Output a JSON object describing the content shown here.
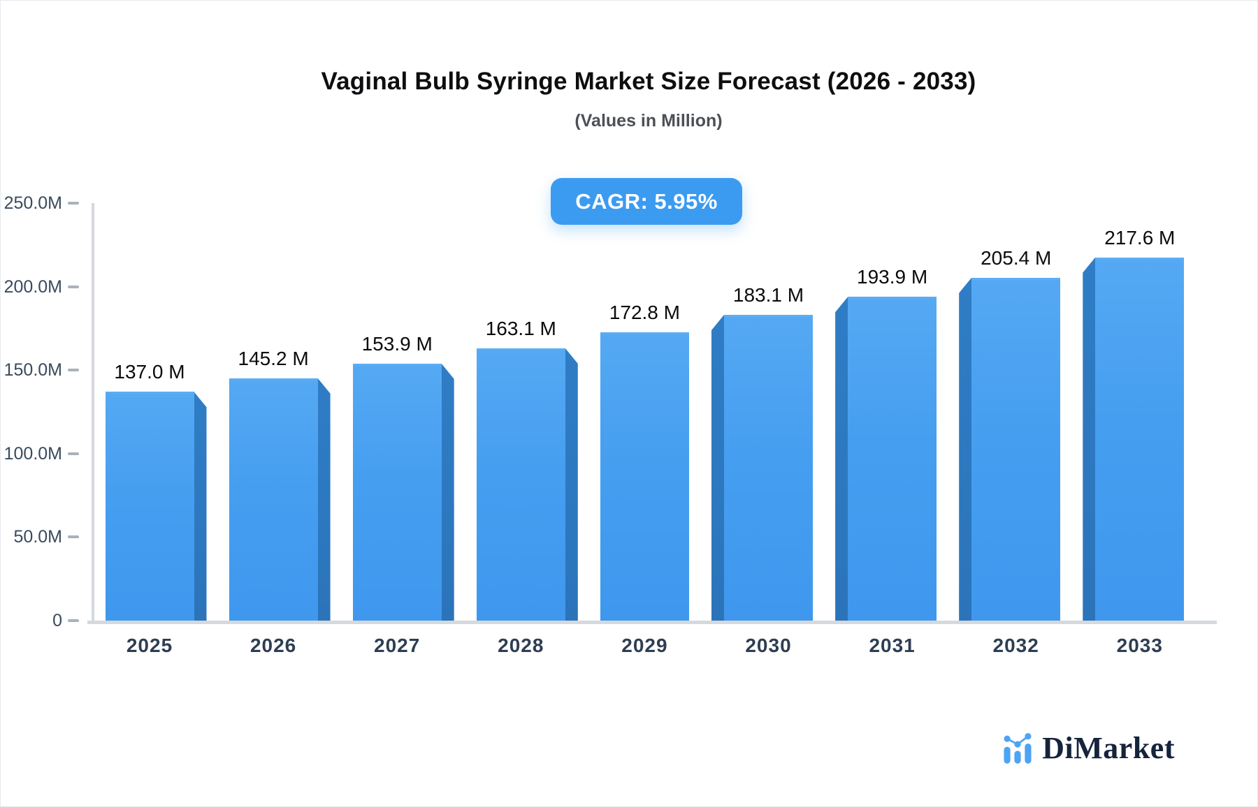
{
  "header": {
    "title": "Vaginal Bulb Syringe Market Size Forecast (2026 - 2033)",
    "subtitle": "(Values in Million)"
  },
  "badge": {
    "label": "CAGR: 5.95%",
    "color": "#3b9bf0"
  },
  "chart_data": {
    "type": "bar",
    "categories": [
      "2025",
      "2026",
      "2027",
      "2028",
      "2029",
      "2030",
      "2031",
      "2032",
      "2033"
    ],
    "values": [
      137.0,
      145.2,
      153.9,
      163.1,
      172.8,
      183.1,
      193.9,
      205.4,
      217.6
    ],
    "value_labels": [
      "137.0 M",
      "145.2 M",
      "153.9 M",
      "163.1 M",
      "172.8 M",
      "183.1 M",
      "193.9 M",
      "205.4 M",
      "217.6 M"
    ],
    "title": "Vaginal Bulb Syringe Market Size Forecast (2026 - 2033)",
    "subtitle": "(Values in Million)",
    "xlabel": "",
    "ylabel": "",
    "ylim": [
      0,
      250
    ],
    "yticks": [
      "250.0M",
      "200.0M",
      "150.0M",
      "100.0M",
      "50.0M",
      "0"
    ],
    "grid": false,
    "legend": "none",
    "style": "3d-perspective-bars",
    "colors": {
      "bar_face": "#469ef0",
      "bar_face_light": "#55a9f3",
      "bar_side": "#2d79c1",
      "axis": "#d5d9de",
      "tick_label": "#3a4a5e",
      "category_label": "#2e3e52",
      "value_label": "#0a0b0d"
    }
  },
  "logo": {
    "icon": "bar-chart-trend-icon",
    "text": "DiMarket",
    "icon_color": "#4da3f5",
    "text_color": "#16233c"
  }
}
